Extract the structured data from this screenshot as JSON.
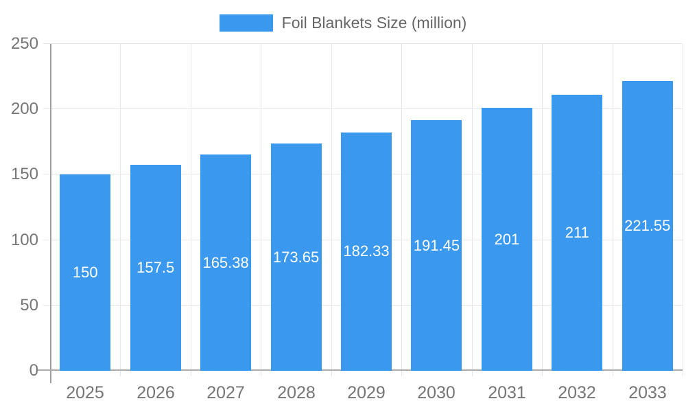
{
  "legend": {
    "label": "Foil Blankets Size (million)",
    "swatch_color": "#3a99ee"
  },
  "colors": {
    "bar": "#3a99ee",
    "bar_label_text": "#ffffff",
    "grid": "#e6e6e6",
    "axis": "#9e9e9e",
    "tick_text": "#757575",
    "legend_text": "#666666",
    "background": "#ffffff"
  },
  "chart_data": {
    "type": "bar",
    "title": "Foil Blankets Size (million)",
    "categories": [
      "2025",
      "2026",
      "2027",
      "2028",
      "2029",
      "2030",
      "2031",
      "2032",
      "2033"
    ],
    "values": [
      150,
      157.5,
      165.38,
      173.65,
      182.33,
      191.45,
      201,
      211,
      221.55
    ],
    "xlabel": "",
    "ylabel": "",
    "ylim": [
      0,
      250
    ],
    "yticks": [
      0,
      50,
      100,
      150,
      200,
      250
    ],
    "grid": true,
    "legend_position": "top-center",
    "value_label_position": "inside-center"
  }
}
